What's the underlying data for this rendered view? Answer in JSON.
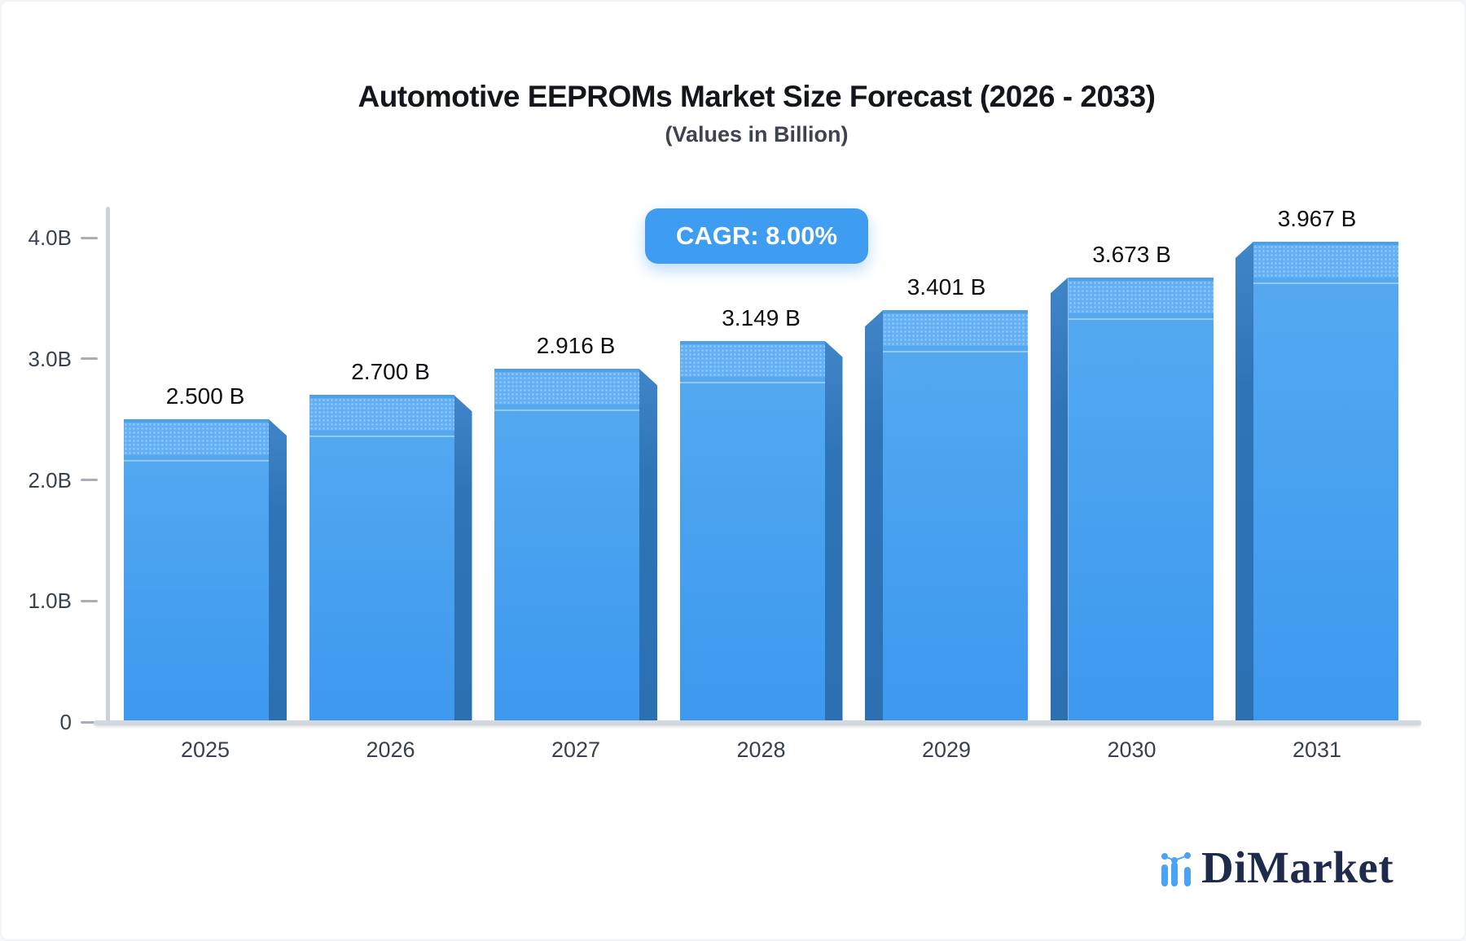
{
  "chart_data": {
    "type": "bar",
    "title": "Automotive EEPROMs Market Size Forecast (2026 - 2033)",
    "subtitle": "(Values in Billion)",
    "cagr_label": "CAGR: 8.00%",
    "categories": [
      "2025",
      "2026",
      "2027",
      "2028",
      "2029",
      "2030",
      "2031"
    ],
    "values": [
      2.5,
      2.7,
      2.916,
      3.149,
      3.401,
      3.673,
      3.967
    ],
    "value_labels": [
      "2.500 B",
      "2.700 B",
      "2.916 B",
      "3.149 B",
      "3.401 B",
      "3.673 B",
      "3.967 B"
    ],
    "xlabel": "",
    "ylabel": "",
    "ylim": [
      0,
      4.0
    ],
    "ytick_values": [
      0,
      1,
      2,
      3,
      4
    ],
    "ytick_labels": [
      "0",
      "1.0B",
      "2.0B",
      "3.0B",
      "4.0B"
    ],
    "grid": false,
    "legend": false,
    "colors": {
      "bar_body": "#46a0ee",
      "bar_cap_light": "#63b1f4",
      "bar_side_dark": "#2e74b6",
      "badge_bg": "#3e9cf1",
      "badge_text": "#ffffff",
      "axis_line": "#ccd2da",
      "label_text": "#0e1014"
    }
  },
  "branding": {
    "logo_text": "DiMarket",
    "logo_icon": "mini-bar-chart-icon",
    "logo_icon_color": "#4aa3f7",
    "logo_text_color": "#1e2b4a"
  }
}
